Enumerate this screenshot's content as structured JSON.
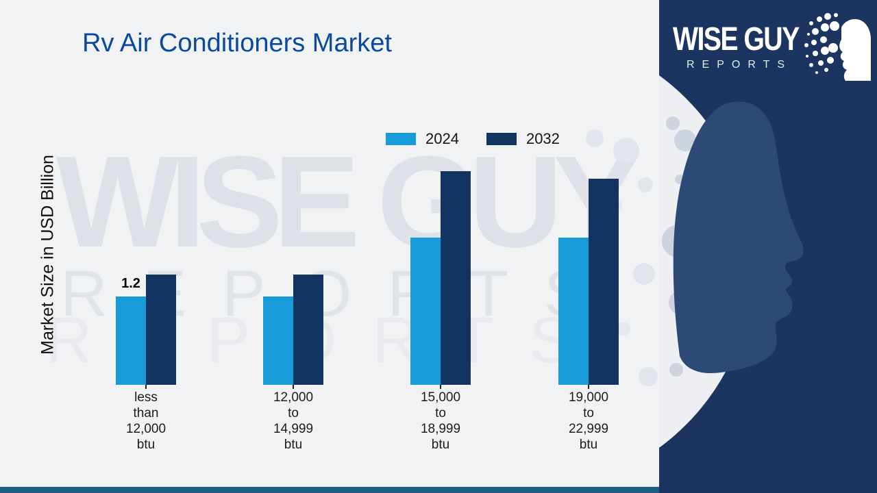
{
  "title": "Rv Air Conditioners Market",
  "ylabel": "Market Size in USD Billion",
  "watermark": {
    "line1": "WISE GUY",
    "line2": "REPORTS"
  },
  "logo": {
    "line1": "WISE GUY",
    "line2": "REPORTS"
  },
  "colors": {
    "title_blue": "#0a4a9e",
    "series_2024": "#189bd9",
    "series_2032": "#123460",
    "panel_navy": "#1b3560",
    "bottom_bar_teal": "#1d5e84",
    "watermark_gray": "#c6cdda"
  },
  "chart_data": {
    "type": "bar",
    "title": "Rv Air Conditioners Market",
    "xlabel": "",
    "ylabel": "Market Size in USD Billion",
    "categories": [
      "less than 12,000 btu",
      "12,000 to 14,999 btu",
      "15,000 to 18,999 btu",
      "19,000 to 22,999 btu"
    ],
    "series": [
      {
        "name": "2024",
        "color": "#189bd9",
        "values": [
          1.2,
          1.2,
          2.0,
          2.0
        ]
      },
      {
        "name": "2032",
        "color": "#123460",
        "values": [
          1.5,
          1.5,
          2.9,
          2.8
        ]
      }
    ],
    "data_labels": [
      {
        "series_index": 0,
        "category_index": 0,
        "text": "1.2"
      }
    ],
    "legend_position": "top-center",
    "grid": false,
    "ylim": [
      0,
      3.2
    ]
  }
}
